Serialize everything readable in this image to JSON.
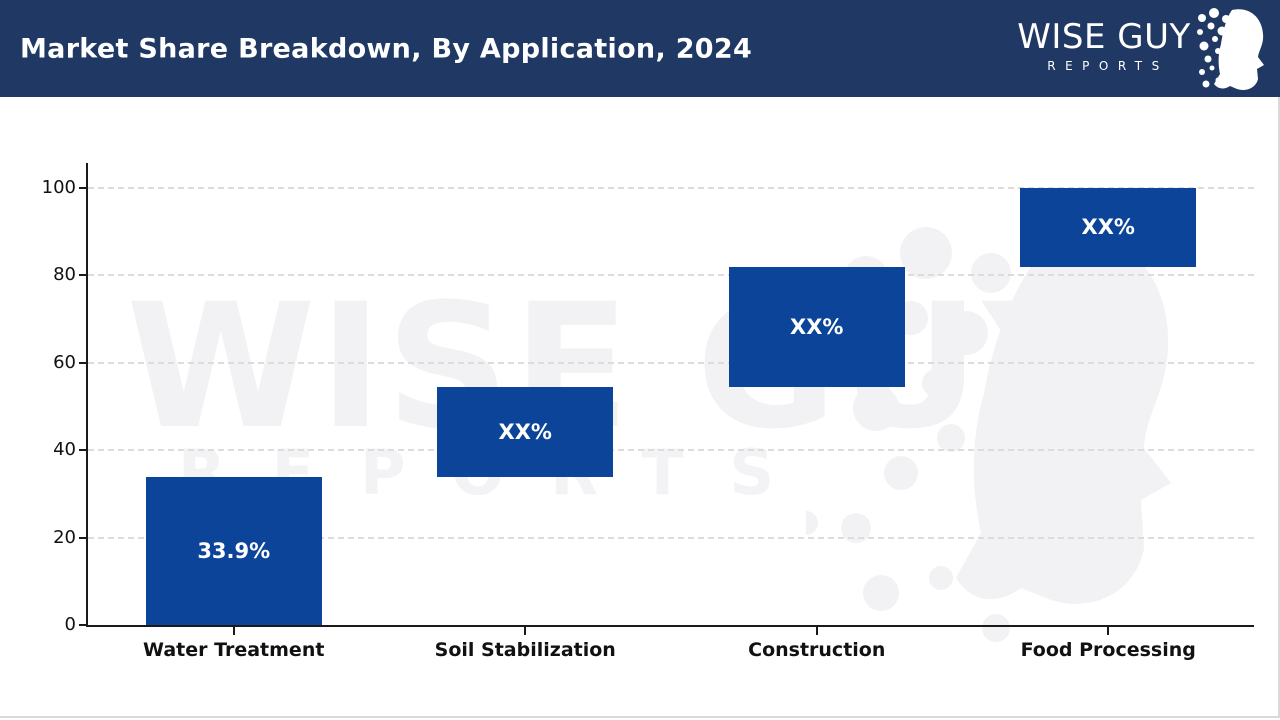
{
  "header": {
    "title": "Market Share Breakdown, By Application, 2024",
    "bg_color": "#203864",
    "logo": {
      "line1": "WISE GUY",
      "line2": "REPORTS",
      "icon": "dotted-face-profile"
    }
  },
  "watermark": {
    "line1": "WISE GUY",
    "line2": "REPORTS",
    "icon": "dotted-face-profile"
  },
  "chart_data": {
    "type": "bar",
    "subtype": "waterfall",
    "title": "Market Share Breakdown, By Application, 2024",
    "categories": [
      "Water Treatment",
      "Soil Stabilization",
      "Construction",
      "Food Processing"
    ],
    "segments": [
      {
        "category": "Water Treatment",
        "start": 0,
        "end": 33.9,
        "label": "33.9%"
      },
      {
        "category": "Soil Stabilization",
        "start": 33.9,
        "end": 54.4,
        "label": "XX%"
      },
      {
        "category": "Construction",
        "start": 54.4,
        "end": 81.8,
        "label": "XX%"
      },
      {
        "category": "Food Processing",
        "start": 81.8,
        "end": 100,
        "label": "XX%"
      }
    ],
    "xlabel": "",
    "ylabel": "",
    "ylim": [
      0,
      100
    ],
    "yticks": [
      0,
      20,
      40,
      60,
      80,
      100
    ],
    "grid": "horizontal-dashed",
    "legend": "none",
    "bar_color": "#0b4499",
    "bar_label_color": "#ffffff",
    "axis_color": "#1a1a1a",
    "gridline_color": "#dcdcdc"
  }
}
